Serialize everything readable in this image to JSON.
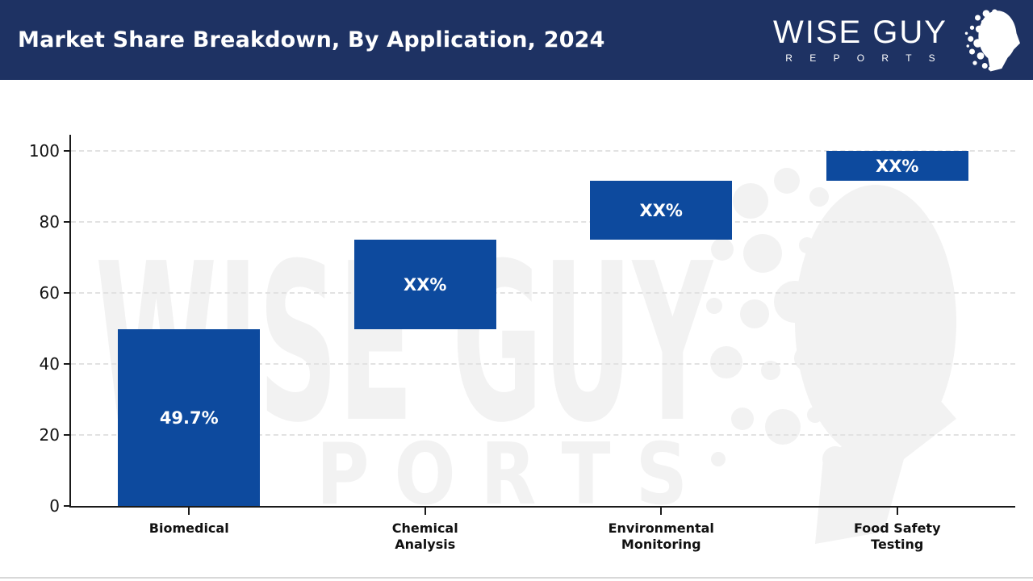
{
  "header": {
    "title": "Market Share Breakdown, By Application, 2024",
    "logo": {
      "line1": "WISE GUY",
      "line2": "R E P O R T S"
    }
  },
  "watermark": {
    "line1": "WISE GUY",
    "line2": "P O R T S"
  },
  "chart_data": {
    "type": "bar",
    "subtype": "floating-waterfall-segments",
    "title": "Market Share Breakdown, By Application, 2024",
    "categories": [
      "Biomedical",
      "Chemical Analysis",
      "Environmental Monitoring",
      "Food Safety Testing"
    ],
    "segments": [
      {
        "category": "Biomedical",
        "from": 0,
        "to": 49.7,
        "label": "49.7%"
      },
      {
        "category": "Chemical Analysis",
        "from": 49.7,
        "to": 75.0,
        "label": "XX%"
      },
      {
        "category": "Environmental Monitoring",
        "from": 75.0,
        "to": 91.5,
        "label": "XX%"
      },
      {
        "category": "Food Safety Testing",
        "from": 91.5,
        "to": 100.0,
        "label": "XX%"
      }
    ],
    "xlabel": "",
    "ylabel": "",
    "ylim": [
      0,
      100
    ],
    "yticks": [
      0,
      20,
      40,
      60,
      80,
      100
    ],
    "grid": "horizontal-dashed",
    "legend": "none",
    "bar_color": "#0d4a9e",
    "bar_label_color": "#ffffff"
  },
  "colors": {
    "header_bg": "#1e3263",
    "bar": "#0d4a9e",
    "grid": "#e2e2e2",
    "axis": "#1a1a1a",
    "watermark": "#f2f2f2"
  }
}
